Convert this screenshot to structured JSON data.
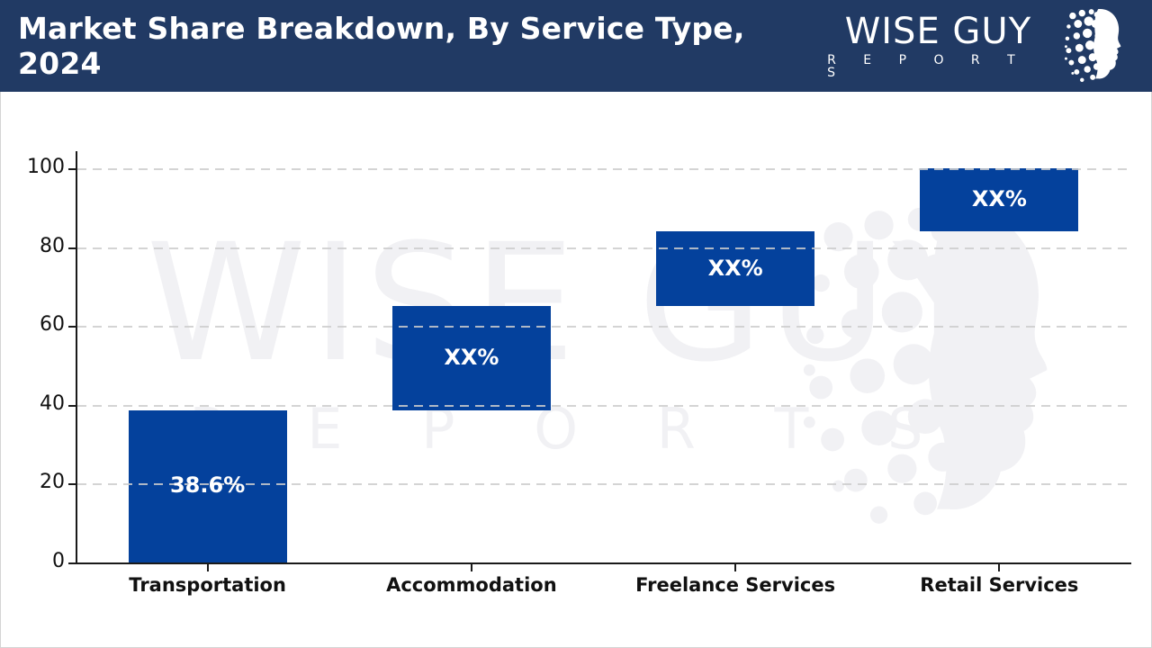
{
  "header": {
    "title": "Market Share Breakdown, By Service Type, 2024",
    "logo": {
      "line1": "WISE GUY",
      "line2": "R E P O R T S"
    }
  },
  "watermark": {
    "line1": "WISE GUY",
    "line2": "R E P O R T S"
  },
  "colors": {
    "header_bg": "#213a64",
    "bar": "#04419c",
    "bar_label": "#ffffff",
    "watermark": "#f1f1f4",
    "axis": "#1a1a1a",
    "grid": "#d8d8d8",
    "title_text": "#ffffff"
  },
  "chart_data": {
    "type": "bar",
    "subtype": "floating-waterfall",
    "title": "Market Share Breakdown, By Service Type, 2024",
    "categories": [
      "Transportation",
      "Accommodation",
      "Freelance Services",
      "Retail Services"
    ],
    "series": [
      {
        "name": "Market Share",
        "segments": [
          {
            "category": "Transportation",
            "start": 0,
            "end": 38.6,
            "label": "38.6%"
          },
          {
            "category": "Accommodation",
            "start": 38.6,
            "end": 65,
            "label": "XX%"
          },
          {
            "category": "Freelance Services",
            "start": 65,
            "end": 84,
            "label": "XX%"
          },
          {
            "category": "Retail Services",
            "start": 84,
            "end": 100,
            "label": "XX%"
          }
        ]
      }
    ],
    "xlabel": "",
    "ylabel": "",
    "yticks": [
      0,
      20,
      40,
      60,
      80,
      100
    ],
    "ylim": [
      0,
      105
    ],
    "grid": "horizontal-dashed",
    "legend": "none",
    "bar_color": "#04419c",
    "label_color": "#ffffff"
  }
}
